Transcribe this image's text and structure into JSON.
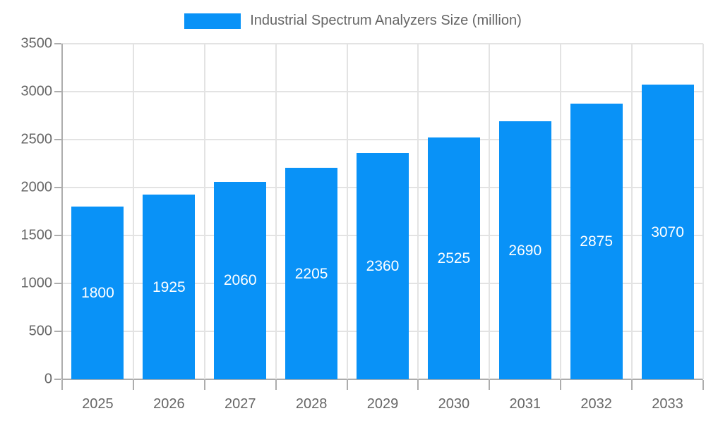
{
  "legend": {
    "label": "Industrial Spectrum Analyzers Size (million)"
  },
  "chart_data": {
    "type": "bar",
    "title": "Industrial Spectrum Analyzers Size (million)",
    "series_name": "Industrial Spectrum Analyzers Size (million)",
    "categories": [
      "2025",
      "2026",
      "2027",
      "2028",
      "2029",
      "2030",
      "2031",
      "2032",
      "2033"
    ],
    "values": [
      1800,
      1925,
      2060,
      2205,
      2360,
      2525,
      2690,
      2875,
      3070
    ],
    "value_labels": [
      "1800",
      "1925",
      "2060",
      "2205",
      "2360",
      "2525",
      "2690",
      "2875",
      "3070"
    ],
    "xlabel": "",
    "ylabel": "",
    "ylim": [
      0,
      3500
    ],
    "ytick_step": 500,
    "ytick_labels": [
      "0",
      "500",
      "1000",
      "1500",
      "2000",
      "2500",
      "3000",
      "3500"
    ],
    "grid": true,
    "legend_position": "top",
    "colors": {
      "bar": "#0992f7",
      "value_label_text": "#ffffff",
      "axis_text": "#666666",
      "grid_line": "#e3e3e3",
      "axis_line": "#adadad",
      "background": "#ffffff"
    }
  }
}
